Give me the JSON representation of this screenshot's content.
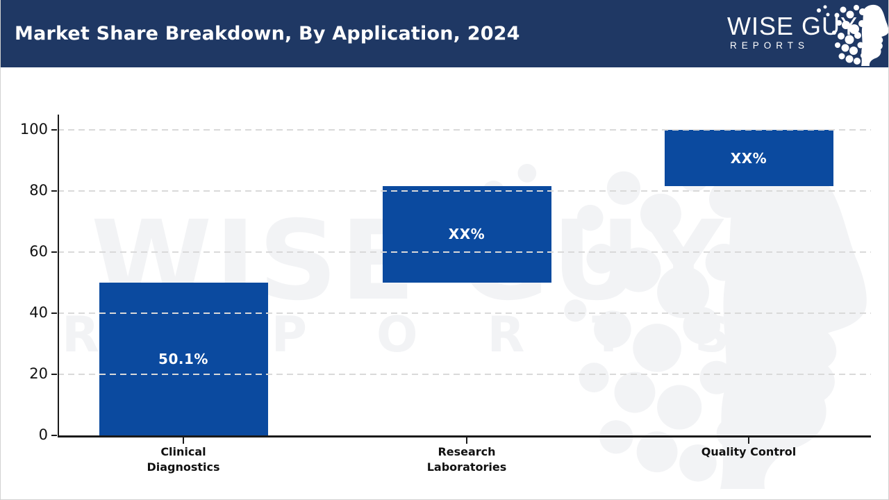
{
  "header": {
    "title": "Market Share Breakdown, By Application, 2024",
    "logo": {
      "line1": "WISE GUY",
      "line2": "REPORTS"
    }
  },
  "watermark": {
    "line1": "WISE GUY",
    "line2": "REPORTS"
  },
  "colors": {
    "header_bg": "#1f3864",
    "bar": "#0b4a9f",
    "grid": "#d9d9d9",
    "axis": "#1a1a1a",
    "bar_label_text": "#ffffff",
    "watermark": "#f2f3f5"
  },
  "chart_data": {
    "type": "bar",
    "subtype": "floating-waterfall-percent",
    "title": "Market Share Breakdown, By Application, 2024",
    "categories": [
      "Clinical\nDiagnostics",
      "Research\nLaboratories",
      "Quality Control"
    ],
    "segments": [
      {
        "category": "Clinical Diagnostics",
        "start": 0,
        "end": 50.1,
        "label": "50.1%"
      },
      {
        "category": "Research Laboratories",
        "start": 50.1,
        "end": 81.5,
        "label": "XX%"
      },
      {
        "category": "Quality Control",
        "start": 81.5,
        "end": 100,
        "label": "XX%"
      }
    ],
    "yticks": [
      0,
      20,
      40,
      60,
      80,
      100
    ],
    "ylim": [
      0,
      105
    ],
    "xlabel": "",
    "ylabel": "",
    "grid": "dashed-horizontal",
    "legend": "none"
  }
}
